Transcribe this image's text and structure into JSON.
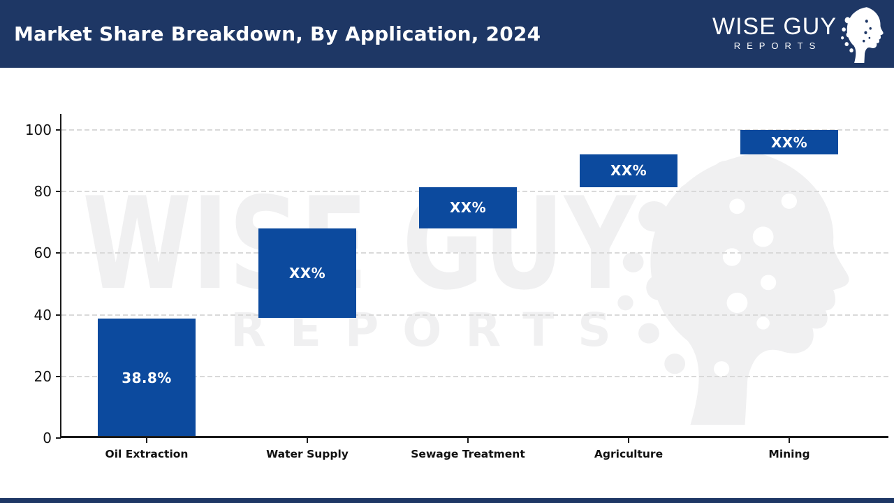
{
  "header": {
    "title": "Market Share Breakdown, By Application, 2024",
    "logo": {
      "primary": "WISE GUY",
      "secondary": "REPORTS"
    }
  },
  "watermark": {
    "primary": "WISE GUY",
    "secondary": "REPORTS"
  },
  "chart_data": {
    "type": "bar",
    "subtype": "waterfall-floating-bars",
    "title": "Market Share Breakdown, By Application, 2024",
    "categories": [
      "Oil Extraction",
      "Water Supply",
      "Sewage Treatment",
      "Agriculture",
      "Mining"
    ],
    "segments": [
      {
        "category": "Oil Extraction",
        "start": 0,
        "end": 38.8,
        "label": "38.8%"
      },
      {
        "category": "Water Supply",
        "start": 39,
        "end": 68,
        "label": "XX%"
      },
      {
        "category": "Sewage Treatment",
        "start": 68,
        "end": 81.5,
        "label": "XX%"
      },
      {
        "category": "Agriculture",
        "start": 81.5,
        "end": 92,
        "label": "XX%"
      },
      {
        "category": "Mining",
        "start": 92,
        "end": 100,
        "label": "XX%"
      }
    ],
    "ylim": [
      0,
      100
    ],
    "yticks": [
      0,
      20,
      40,
      60,
      80,
      100
    ],
    "xlabel": "",
    "ylabel": "",
    "grid": "horizontal-dashed",
    "legend": "none",
    "bar_color": "#0c4a9e",
    "bar_label_color": "#ffffff"
  },
  "colors": {
    "header_bg": "#1e3765",
    "footer_bg": "#1e3765",
    "bar": "#0c4a9e",
    "grid": "#d9d9d9",
    "axis": "#1a1a1a",
    "tick_label": "#111111",
    "watermark": "#f0f0f1",
    "title_text": "#ffffff"
  }
}
